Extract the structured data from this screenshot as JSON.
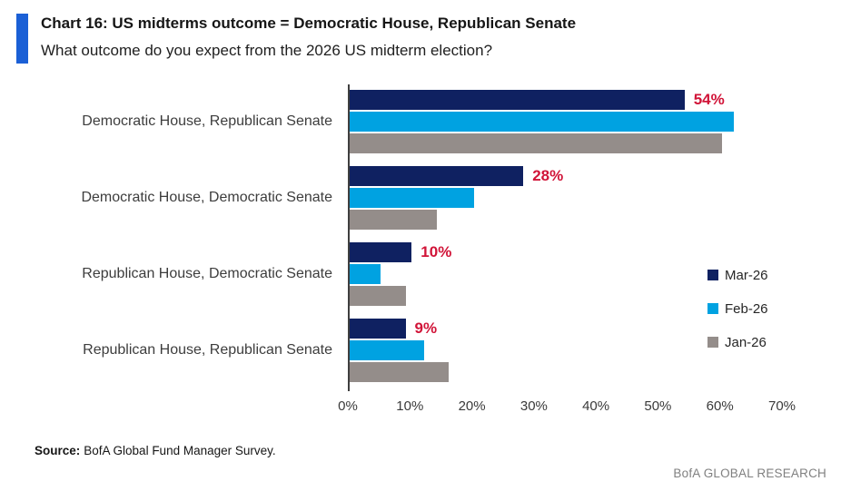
{
  "header": {
    "title": "Chart 16: US midterms outcome = Democratic House, Republican Senate",
    "subtitle": "What outcome do you expect from the 2026 US midterm election?",
    "accent_color": "#1b60d6"
  },
  "chart_data": {
    "type": "bar",
    "orientation": "horizontal",
    "title": "Chart 16: US midterms outcome = Democratic House, Republican Senate",
    "subtitle": "What outcome do you expect from the 2026 US midterm election?",
    "categories": [
      "Democratic House, Republican Senate",
      "Democratic House, Democratic Senate",
      "Republican House, Democratic Senate",
      "Republican House, Republican Senate"
    ],
    "series": [
      {
        "name": "Mar-26",
        "color": "#0f2161",
        "values": [
          54,
          28,
          10,
          9
        ]
      },
      {
        "name": "Feb-26",
        "color": "#00a2e1",
        "values": [
          62,
          20,
          5,
          12
        ]
      },
      {
        "name": "Jan-26",
        "color": "#948d8a",
        "values": [
          60,
          14,
          9,
          16
        ]
      }
    ],
    "data_labels": {
      "series": "Mar-26",
      "labels": [
        "54%",
        "28%",
        "10%",
        "9%"
      ],
      "color": "#d11438"
    },
    "xlim": [
      0,
      70
    ],
    "x_ticks": [
      "0%",
      "10%",
      "20%",
      "30%",
      "40%",
      "50%",
      "60%",
      "70%"
    ],
    "xlabel": "",
    "ylabel": "",
    "grid": false,
    "legend_position": "center-right",
    "axis_color": "#3f3f3f"
  },
  "footer": {
    "source_label": "Source:",
    "source_text": "BofA Global Fund Manager Survey.",
    "brand": "BofA GLOBAL RESEARCH"
  }
}
